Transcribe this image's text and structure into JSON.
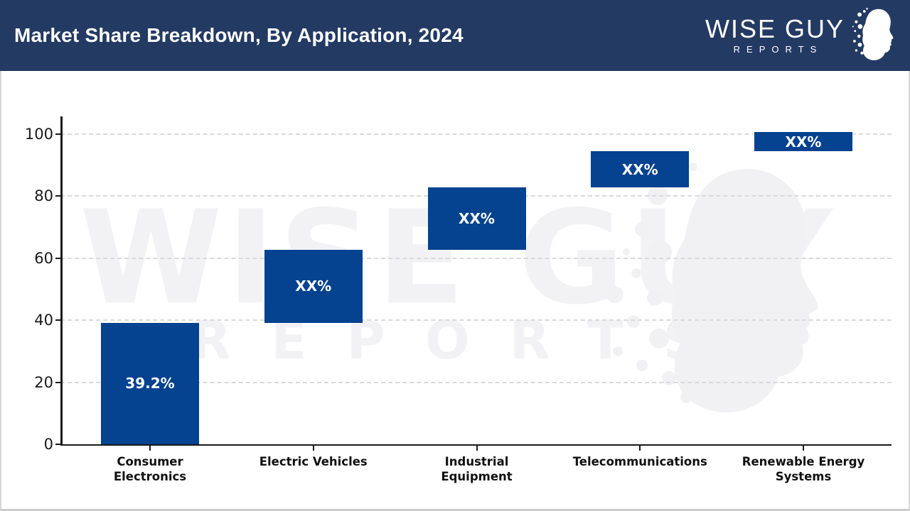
{
  "header": {
    "title": "Market Share Breakdown, By Application, 2024",
    "logo_line1": "WISE GUY",
    "logo_line2": "REPORTS",
    "bg_color": "#233A63"
  },
  "watermark": {
    "line1": "WISE GUY",
    "line2": "REPORTS"
  },
  "chart_data": {
    "type": "bar",
    "variant": "waterfall",
    "title": "Market Share Breakdown, By Application, 2024",
    "categories": [
      "Consumer Electronics",
      "Electric Vehicles",
      "Industrial Equipment",
      "Telecommunications",
      "Renewable Energy Systems"
    ],
    "bars": [
      {
        "category": "Consumer Electronics",
        "category_lines": [
          "Consumer",
          "Electronics"
        ],
        "start": 0,
        "end": 39.2,
        "label": "39.2%"
      },
      {
        "category": "Electric Vehicles",
        "category_lines": [
          "Electric Vehicles"
        ],
        "start": 39.2,
        "end": 62.8,
        "label": "XX%"
      },
      {
        "category": "Industrial Equipment",
        "category_lines": [
          "Industrial",
          "Equipment"
        ],
        "start": 62.8,
        "end": 82.8,
        "label": "XX%"
      },
      {
        "category": "Telecommunications",
        "category_lines": [
          "Telecommunications"
        ],
        "start": 82.8,
        "end": 94.4,
        "label": "XX%"
      },
      {
        "category": "Renewable Energy Systems",
        "category_lines": [
          "Renewable Energy",
          "Systems"
        ],
        "start": 94.4,
        "end": 100.6,
        "label": "XX%"
      }
    ],
    "y_ticks": [
      0,
      20,
      40,
      60,
      80,
      100
    ],
    "ylim": [
      0,
      105
    ],
    "grid": {
      "horizontal": true,
      "style": "dashed",
      "color": "#d9d9d9"
    },
    "legend": "none",
    "bar_color": "#05428F",
    "value_label_color": "#FFFFFF"
  }
}
